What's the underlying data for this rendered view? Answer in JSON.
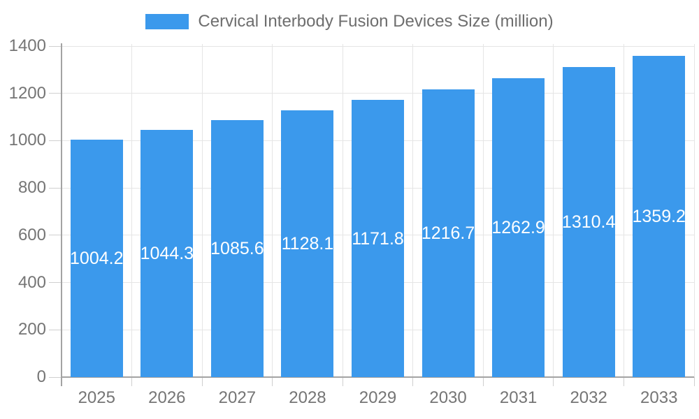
{
  "chart_data": {
    "type": "bar",
    "title": "Cervical Interbody Fusion Devices Size (million)",
    "categories": [
      "2025",
      "2026",
      "2027",
      "2028",
      "2029",
      "2030",
      "2031",
      "2032",
      "2033"
    ],
    "values": [
      1004.2,
      1044.3,
      1085.6,
      1128.1,
      1171.8,
      1216.7,
      1262.9,
      1310.4,
      1359.2
    ],
    "xlabel": "",
    "ylabel": "",
    "ylim": [
      0,
      1400
    ],
    "ytick_step": 200,
    "yticks": [
      "0",
      "200",
      "400",
      "600",
      "800",
      "1000",
      "1200",
      "1400"
    ],
    "grid": true,
    "legend_position": "top",
    "value_label_position": "inside-center",
    "colors": {
      "bar": "#3B99EC",
      "bar_label": "#FFFFFF",
      "axis_text": "#757575",
      "title_text": "#6E6E6E",
      "gridline": "#E5E5E5",
      "tick": "#CFCFCF",
      "axis_line": "#A3A3A3",
      "background": "#FFFFFF"
    }
  }
}
